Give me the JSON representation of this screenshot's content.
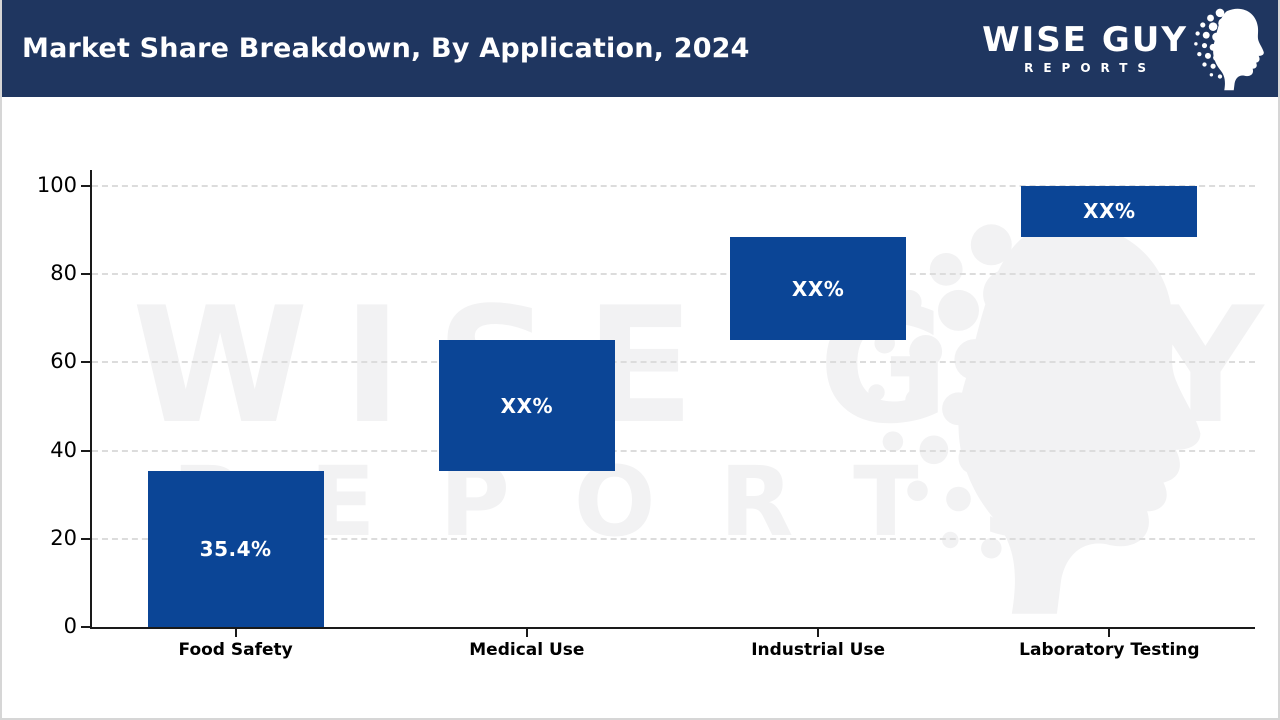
{
  "header": {
    "title": "Market Share Breakdown, By Application, 2024",
    "bg_color": "#1f3660",
    "logo": {
      "line1": "WISE GUY",
      "line2": "REPORTS"
    }
  },
  "watermark": {
    "line1": "WISE GUY",
    "line2": "REPORTS"
  },
  "chart_data": {
    "type": "bar",
    "subtype": "waterfall-segments",
    "title": "Market Share Breakdown, By Application, 2024",
    "categories": [
      "Food Safety",
      "Medical Use",
      "Industrial Use",
      "Laboratory Testing"
    ],
    "segments": [
      {
        "category": "Food Safety",
        "start": 0,
        "end": 35.4,
        "label": "35.4%"
      },
      {
        "category": "Medical Use",
        "start": 35.4,
        "end": 65,
        "label": "XX%"
      },
      {
        "category": "Industrial Use",
        "start": 65,
        "end": 88.5,
        "label": "XX%"
      },
      {
        "category": "Laboratory Testing",
        "start": 88.5,
        "end": 100,
        "label": "XX%"
      }
    ],
    "ylim": [
      0,
      100
    ],
    "yticks": [
      0,
      20,
      40,
      60,
      80,
      100
    ],
    "xlabel": "",
    "ylabel": "",
    "grid": "horizontal-dashed",
    "legend": "none",
    "bar_color": "#0b4596",
    "bar_label_color": "#ffffff",
    "axis_color": "#1a1a1a"
  }
}
